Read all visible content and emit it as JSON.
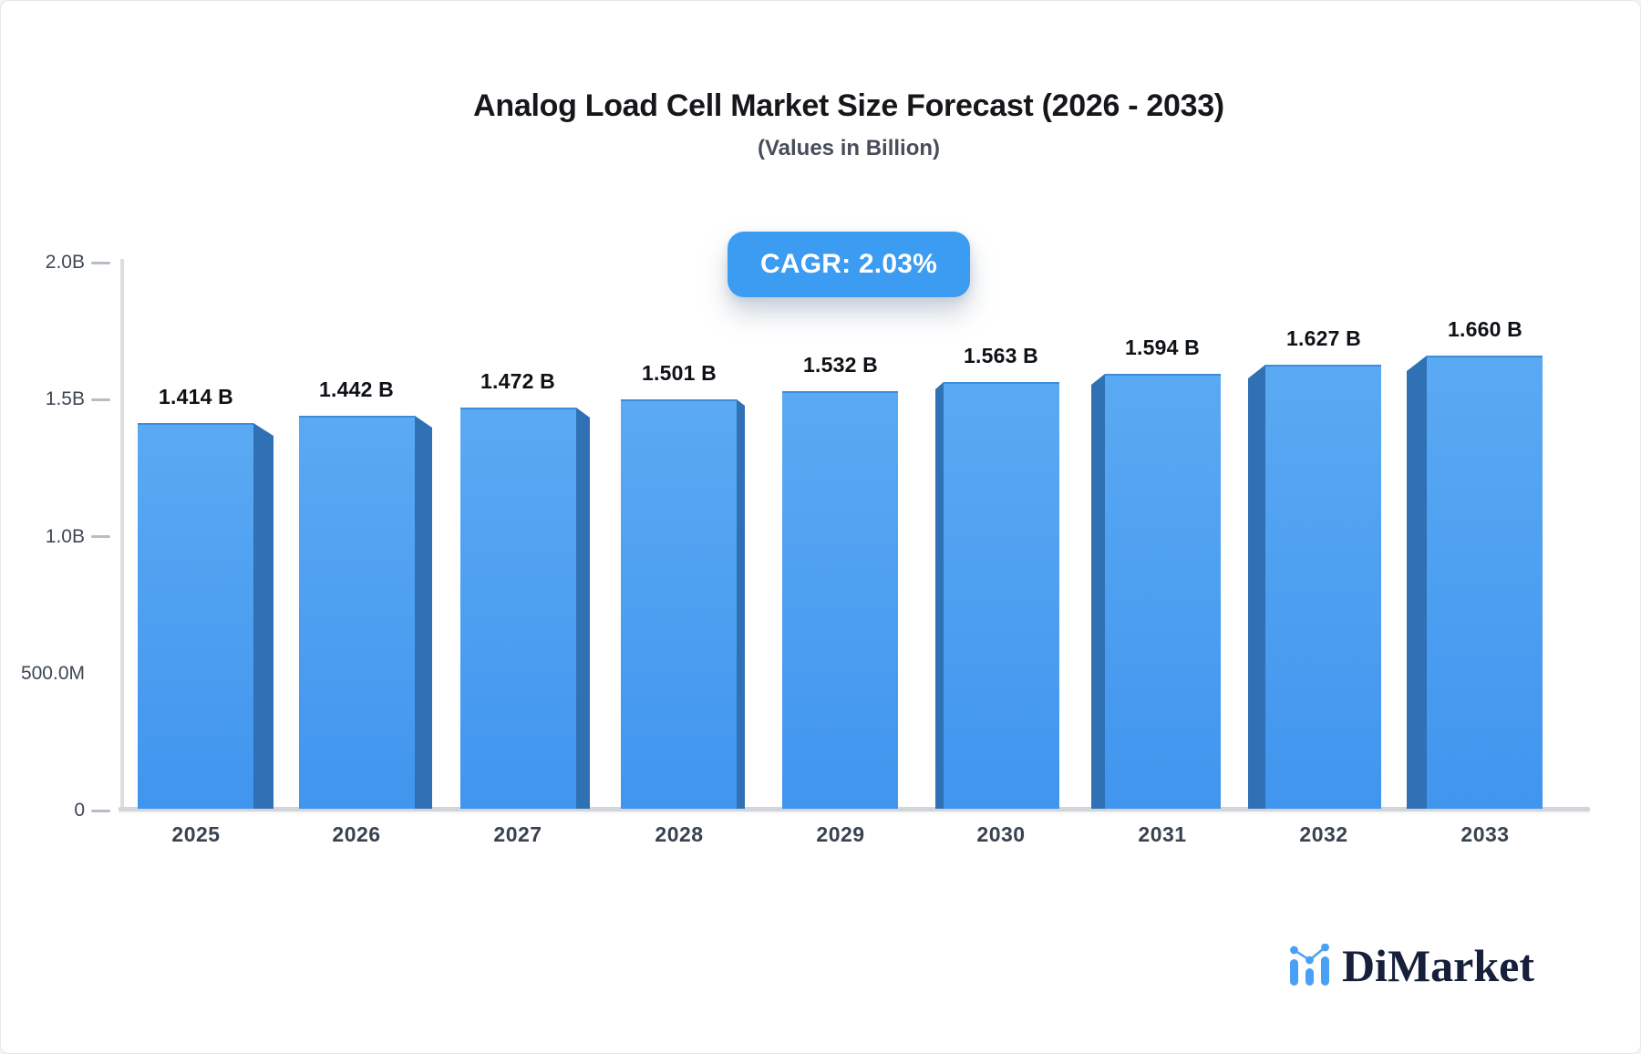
{
  "header": {
    "title": "Analog Load Cell Market Size Forecast (2026 - 2033)",
    "subtitle": "(Values in Billion)",
    "cagr_badge_label": "CAGR: 2.03%"
  },
  "chart_data": {
    "type": "bar",
    "title": "Analog Load Cell Market Size Forecast (2026 - 2033)",
    "subtitle": "(Values in Billion)",
    "categories": [
      "2025",
      "2026",
      "2027",
      "2028",
      "2029",
      "2030",
      "2031",
      "2032",
      "2033"
    ],
    "values": [
      1.414,
      1.442,
      1.472,
      1.501,
      1.532,
      1.563,
      1.594,
      1.627,
      1.66
    ],
    "bar_labels": [
      "1.414 B",
      "1.442 B",
      "1.472 B",
      "1.501 B",
      "1.532 B",
      "1.563 B",
      "1.594 B",
      "1.627 B",
      "1.660 B"
    ],
    "cagr": "2.03%",
    "yticks": [
      {
        "label": "2.0B",
        "value": 2.0
      },
      {
        "label": "1.5B",
        "value": 1.5
      },
      {
        "label": "1.0B",
        "value": 1.0
      },
      {
        "label": "500.0M",
        "value": 0.5
      },
      {
        "label": "0",
        "value": 0
      }
    ],
    "ylim": [
      0,
      2.0
    ],
    "xlabel": "",
    "ylabel": "",
    "grid": false,
    "legend": false,
    "bar_style": "3d-extruded-toward-center"
  },
  "colors": {
    "badge_bg": "#3b9cf1",
    "badge_text": "#ffffff",
    "bar_face_top": "#5aa9f3",
    "bar_face_bottom": "#4095ee",
    "bar_side": "#2f71b4",
    "tick_text": "#3e4754",
    "label_text": "#0e1116",
    "logo_blue": "#4aa0f5",
    "logo_navy": "#16203a"
  },
  "logo": {
    "text": "DiMarket",
    "icon": "mini-bar-chart-icon"
  }
}
